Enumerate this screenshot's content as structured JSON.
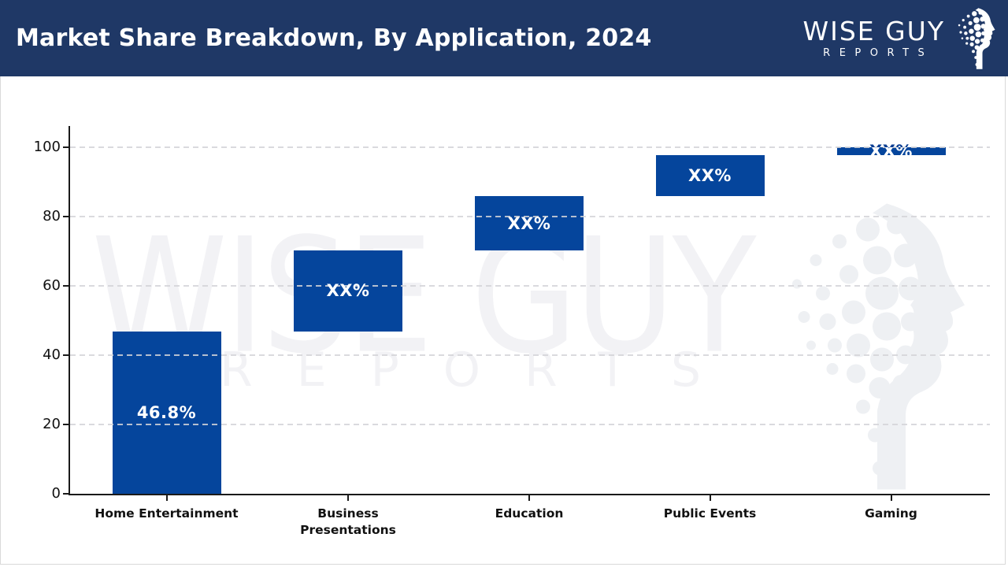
{
  "header": {
    "bg_color": "#1f3866",
    "title": "Market Share Breakdown, By Application, 2024",
    "logo": {
      "line1": "WISE GUY",
      "line2": "REPORTS"
    }
  },
  "watermark": {
    "line1": "WISE GUY",
    "line2": "REPORTS"
  },
  "chart_data": {
    "type": "bar",
    "subtype": "waterfall",
    "title": "Market Share Breakdown, By Application, 2024",
    "categories": [
      "Home Entertainment",
      "Business\nPresentations",
      "Education",
      "Public Events",
      "Gaming"
    ],
    "segments": [
      {
        "category": "Home Entertainment",
        "start": 0,
        "end": 46.8,
        "label": "46.8%"
      },
      {
        "category": "Business\nPresentations",
        "start": 46.8,
        "end": 70.3,
        "label": "XX%"
      },
      {
        "category": "Education",
        "start": 70.3,
        "end": 85.8,
        "label": "XX%"
      },
      {
        "category": "Public Events",
        "start": 85.8,
        "end": 97.7,
        "label": "XX%"
      },
      {
        "category": "Gaming",
        "start": 97.7,
        "end": 100,
        "label": "XX%"
      }
    ],
    "yticks": [
      0,
      20,
      40,
      60,
      80,
      100
    ],
    "ylim": [
      0,
      106
    ],
    "grid": true,
    "legend_position": "none",
    "bar_color": "#05459c",
    "bar_label_color": "#ffffff",
    "thin_bar_label_color": "#0a3e92",
    "grid_color": "#d8d8d8",
    "axis_color": "#1a1a1a",
    "tick_label_color": "#111111"
  }
}
